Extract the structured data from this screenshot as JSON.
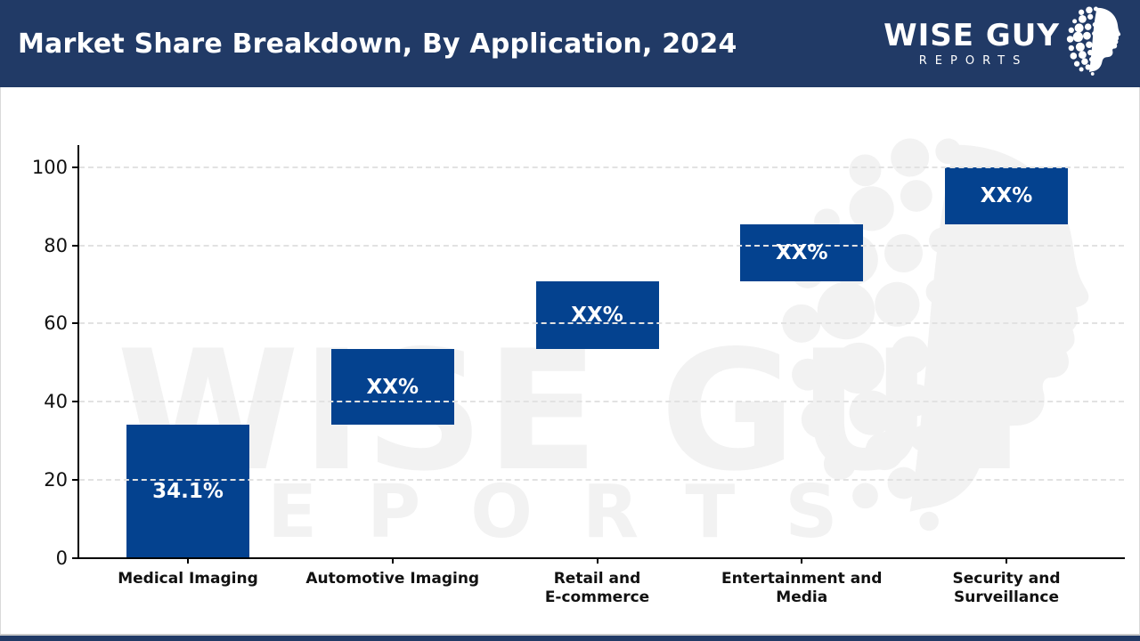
{
  "header": {
    "title": "Market Share Breakdown, By Application, 2024",
    "logo_line1": "WISE GUY",
    "logo_line2": "REPORTS",
    "bg_color": "#213a66"
  },
  "watermark": {
    "line1": "WISE GUY",
    "line2": "REPORTS"
  },
  "chart_data": {
    "type": "bar",
    "subtype": "waterfall",
    "title": "Market Share Breakdown, By Application, 2024",
    "categories": [
      [
        "Medical Imaging"
      ],
      [
        "Automotive Imaging"
      ],
      [
        "Retail and",
        "E-commerce"
      ],
      [
        "Entertainment and",
        "Media"
      ],
      [
        "Security and",
        "Surveillance"
      ]
    ],
    "bars": [
      {
        "label": "34.1%",
        "start": 0,
        "end": 34.1
      },
      {
        "label": "XX%",
        "start": 34.1,
        "end": 53.5
      },
      {
        "label": "XX%",
        "start": 53.5,
        "end": 70.8
      },
      {
        "label": "XX%",
        "start": 70.8,
        "end": 85.4
      },
      {
        "label": "XX%",
        "start": 85.4,
        "end": 100
      }
    ],
    "bar_color": "#04428f",
    "yticks": [
      0,
      20,
      40,
      60,
      80,
      100
    ],
    "ylim": [
      0,
      105
    ],
    "xlabel": "",
    "ylabel": "",
    "grid": "horizontal-dashed",
    "legend": "none"
  }
}
